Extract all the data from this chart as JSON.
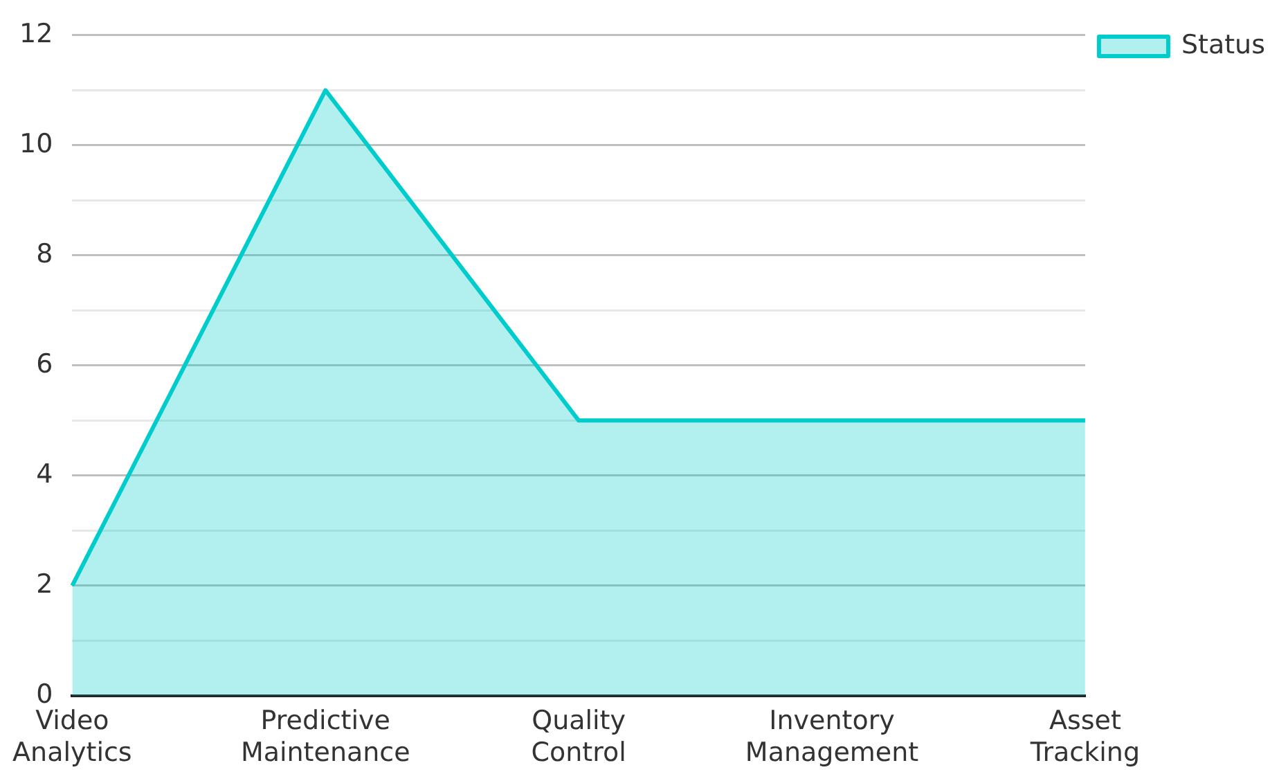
{
  "chart_data": {
    "type": "area",
    "categories": [
      "Video Analytics",
      "Predictive Maintenance",
      "Quality Control",
      "Inventory Management",
      "Asset Tracking"
    ],
    "series": [
      {
        "name": "Status",
        "color": "#00cccc",
        "values": [
          2,
          11,
          5,
          5,
          5
        ]
      }
    ],
    "ylim": [
      0,
      12
    ],
    "yticks": [
      0,
      {
        "value": 1,
        "label": null
      },
      2,
      {
        "value": 3,
        "label": null
      },
      4,
      {
        "value": 5,
        "label": null
      },
      6,
      {
        "value": 7,
        "label": null
      },
      8,
      {
        "value": 9,
        "label": null
      },
      10,
      {
        "value": 11,
        "label": null
      },
      12
    ],
    "grid": "y",
    "legend": "top right"
  }
}
